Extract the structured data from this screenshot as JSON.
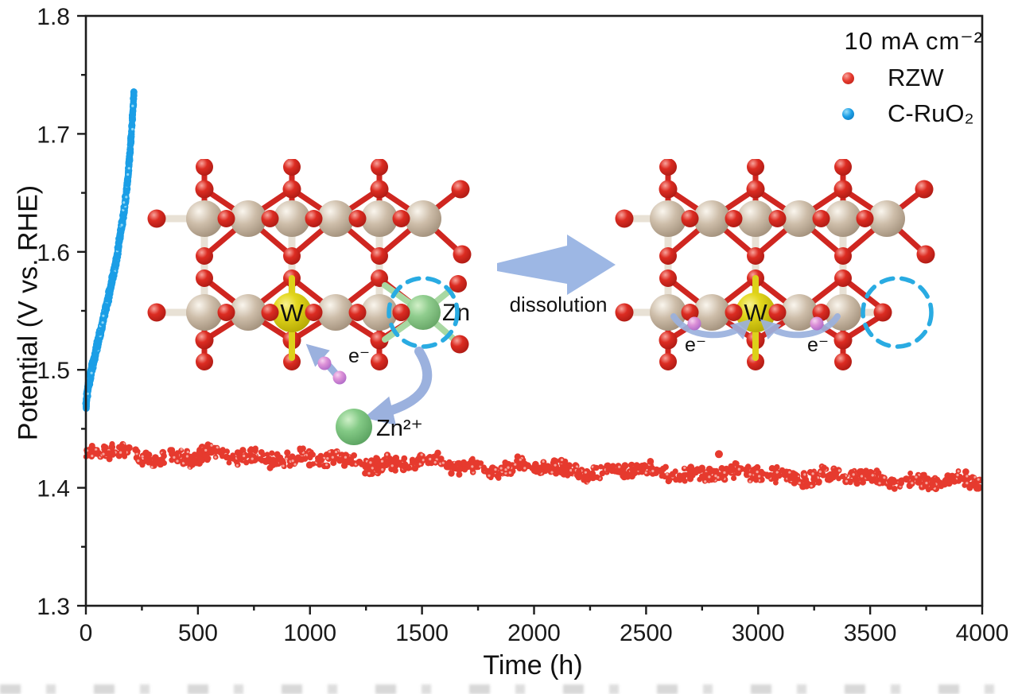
{
  "chart_data": {
    "type": "scatter",
    "title": "",
    "xlabel": "Time (h)",
    "ylabel": "Potential (V vs. RHE)",
    "xlim": [
      0,
      4000
    ],
    "ylim": [
      1.3,
      1.8
    ],
    "x_ticks": [
      0,
      500,
      1000,
      1500,
      2000,
      2500,
      3000,
      3500,
      4000
    ],
    "y_ticks": [
      "1.3",
      "1.4",
      "1.5",
      "1.6",
      "1.7",
      "1.8"
    ],
    "x_minor_step": 250,
    "y_minor_step": 0.05,
    "grid": false,
    "legend_position": "top-right",
    "annotation": "10 mA cm⁻²",
    "series": [
      {
        "name": "RZW",
        "color": "#e63a2e",
        "highlight_color": "#f6a59d",
        "marker": "circle",
        "band_halfwidth": 0.0075,
        "trend": [
          [
            0,
            1.428
          ],
          [
            150,
            1.429
          ],
          [
            300,
            1.427
          ],
          [
            500,
            1.4265
          ],
          [
            700,
            1.4265
          ],
          [
            900,
            1.425
          ],
          [
            1100,
            1.4235
          ],
          [
            1300,
            1.421
          ],
          [
            1500,
            1.4205
          ],
          [
            1700,
            1.419
          ],
          [
            1900,
            1.4165
          ],
          [
            2100,
            1.4155
          ],
          [
            2300,
            1.4145
          ],
          [
            2500,
            1.4135
          ],
          [
            2700,
            1.4125
          ],
          [
            2900,
            1.411
          ],
          [
            3100,
            1.4105
          ],
          [
            3300,
            1.41
          ],
          [
            3500,
            1.408
          ],
          [
            3700,
            1.406
          ],
          [
            3900,
            1.4045
          ],
          [
            3990,
            1.404
          ]
        ],
        "outliers": [
          [
            2825,
            1.4285
          ]
        ],
        "description": "Stable operation: ~1.43 V decaying slightly to ~1.40 V over 4000 h"
      },
      {
        "name": "C-RuO₂",
        "color": "#1b9ee6",
        "highlight_color": "#8ed8f8",
        "marker": "circle",
        "band_halfwidth": 0.005,
        "trend": [
          [
            0,
            1.47
          ],
          [
            6,
            1.48
          ],
          [
            14,
            1.49
          ],
          [
            24,
            1.499
          ],
          [
            36,
            1.508
          ],
          [
            50,
            1.52
          ],
          [
            65,
            1.532
          ],
          [
            80,
            1.545
          ],
          [
            95,
            1.556
          ],
          [
            110,
            1.57
          ],
          [
            125,
            1.583
          ],
          [
            140,
            1.597
          ],
          [
            152,
            1.613
          ],
          [
            163,
            1.625
          ],
          [
            172,
            1.637
          ],
          [
            180,
            1.65
          ],
          [
            188,
            1.664
          ],
          [
            195,
            1.68
          ],
          [
            201,
            1.695
          ],
          [
            206,
            1.71
          ],
          [
            210,
            1.722
          ],
          [
            214,
            1.733
          ]
        ],
        "outliers": [],
        "description": "Rapid degradation: ~1.47 V rising to ~1.73 V within ~215 h"
      }
    ]
  },
  "legend": {
    "annotation": "10 mA cm⁻²",
    "entries": [
      {
        "label": "RZW",
        "color": "#e63a2e"
      },
      {
        "label": "C-RuO₂",
        "color": "#1b9ee6"
      }
    ]
  },
  "axes": {
    "x_title": "Time (h)",
    "y_title": "Potential (V vs. RHE)"
  },
  "inset": {
    "dissolution_label": "dissolution",
    "w_label": "W",
    "zn_label": "Zn",
    "electron_label": "e⁻",
    "zn_ion_label": "Zn²⁺",
    "colors": {
      "ru_atom": "#c7b6a2",
      "o_atom": "#d92b22",
      "w_atom": "#e0d41c",
      "zn_atom": "#8ccb8a",
      "electron": "#dc8fd6",
      "arrow": "#9bb1de",
      "dashed_circle": "#29abe2",
      "bond_light": "#e8e1d5",
      "bond_red": "#cf2620",
      "bond_green": "#a8d8a2",
      "bond_yellow": "#ddd11a"
    }
  }
}
